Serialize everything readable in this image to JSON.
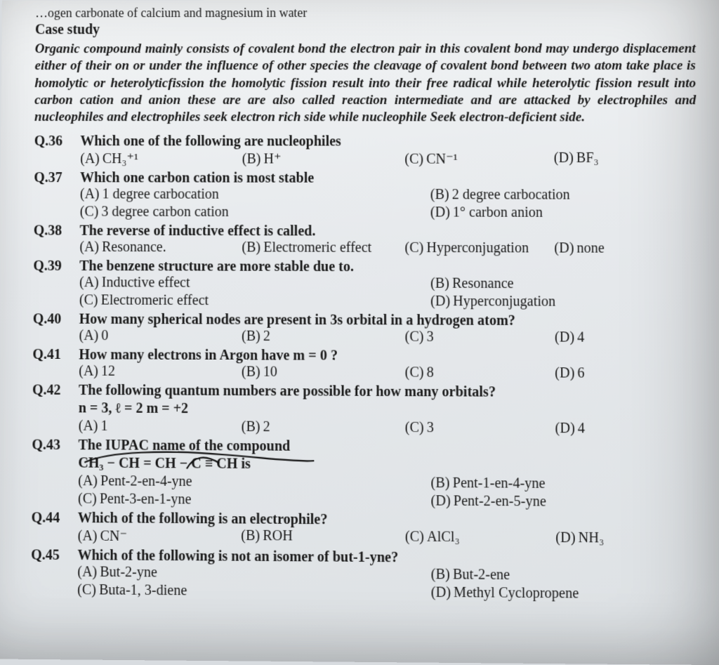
{
  "header": {
    "line1_frag": "…ogen carbonate of calcium and magnesium in water",
    "case_study": "Case study"
  },
  "paragraph": "Organic compound mainly consists of covalent bond the electron pair in this covalent bond may undergo displacement either of their on or under the influence of other species the cleavage of covalent bond between two atom take place is homolytic or heterolyticfission the homolytic fission result into their free radical while heterolytic fission result into carbon cation and anion these are are also called reaction intermediate and are attacked by electrophiles and nucleophiles and electrophiles seek electron rich side while nucleophile Seek electron-deficient side.",
  "questions": [
    {
      "num": "Q.36",
      "text": "Which one of the following are nucleophiles",
      "layout": "cols4",
      "opts": [
        {
          "l": "(A)",
          "t": "CH₃⁺¹"
        },
        {
          "l": "(B)",
          "t": "H⁺"
        },
        {
          "l": "(C)",
          "t": "CN⁻¹"
        },
        {
          "l": "(D)",
          "t": "BF₃"
        }
      ]
    },
    {
      "num": "Q.37",
      "text": "Which one carbon cation is most stable",
      "layout": "cols2",
      "opts": [
        {
          "l": "(A)",
          "t": "1 degree carbocation"
        },
        {
          "l": "(B)",
          "t": "2 degree carbocation"
        },
        {
          "l": "(C)",
          "t": "3 degree carbon cation"
        },
        {
          "l": "(D)",
          "t": "1° carbon anion"
        }
      ]
    },
    {
      "num": "Q.38",
      "text": "The reverse of inductive effect is called.",
      "layout": "cols4",
      "opts": [
        {
          "l": "(A)",
          "t": "Resonance."
        },
        {
          "l": "(B)",
          "t": "Electromeric effect"
        },
        {
          "l": "(C)",
          "t": "Hyperconjugation"
        },
        {
          "l": "(D)",
          "t": "none"
        }
      ]
    },
    {
      "num": "Q.39",
      "text": "The benzene structure are more stable due to.",
      "layout": "cols2",
      "opts": [
        {
          "l": "(A)",
          "t": "Inductive effect"
        },
        {
          "l": "(B)",
          "t": "Resonance"
        },
        {
          "l": "(C)",
          "t": "Electromeric effect"
        },
        {
          "l": "(D)",
          "t": "Hyperconjugation"
        }
      ]
    },
    {
      "num": "Q.40",
      "text": "How many spherical nodes are present in 3s orbital in a hydrogen atom?",
      "layout": "cols4",
      "opts": [
        {
          "l": "(A)",
          "t": "0"
        },
        {
          "l": "(B)",
          "t": "2"
        },
        {
          "l": "(C)",
          "t": "3"
        },
        {
          "l": "(D)",
          "t": "4"
        }
      ]
    },
    {
      "num": "Q.41",
      "text": "How many electrons in Argon have m = 0 ?",
      "layout": "cols4",
      "opts": [
        {
          "l": "(A)",
          "t": "12"
        },
        {
          "l": "(B)",
          "t": "10"
        },
        {
          "l": "(C)",
          "t": "8"
        },
        {
          "l": "(D)",
          "t": "6"
        }
      ]
    },
    {
      "num": "Q.42",
      "text": "The following quantum numbers are possible for how many orbitals?",
      "sub": "n = 3, ℓ = 2  m = +2",
      "layout": "cols4",
      "opts": [
        {
          "l": "(A)",
          "t": "1"
        },
        {
          "l": "(B)",
          "t": "2"
        },
        {
          "l": "(C)",
          "t": "3"
        },
        {
          "l": "(D)",
          "t": "4"
        }
      ]
    },
    {
      "num": "Q.43",
      "text": "The IUPAC name of the compound",
      "sub": "CH₃ − CH = CH − C ≡ CH is",
      "layout": "cols2",
      "opts": [
        {
          "l": "(A)",
          "t": "Pent-2-en-4-yne"
        },
        {
          "l": "(B)",
          "t": "Pent-1-en-4-yne"
        },
        {
          "l": "(C)",
          "t": "Pent-3-en-1-yne"
        },
        {
          "l": "(D)",
          "t": "Pent-2-en-5-yne"
        }
      ]
    },
    {
      "num": "Q.44",
      "text": "Which of the following is an electrophile?",
      "layout": "cols4",
      "opts": [
        {
          "l": "(A)",
          "t": "CN⁻"
        },
        {
          "l": "(B)",
          "t": "ROH"
        },
        {
          "l": "(C)",
          "t": "AlCl₃"
        },
        {
          "l": "(D)",
          "t": "NH₃"
        }
      ]
    },
    {
      "num": "Q.45",
      "text": "Which of the following is not an isomer of but-1-yne?",
      "layout": "cols2",
      "opts": [
        {
          "l": "(A)",
          "t": "But-2-yne"
        },
        {
          "l": "(B)",
          "t": "But-2-ene"
        },
        {
          "l": "(C)",
          "t": "Buta-1, 3-diene"
        },
        {
          "l": "(D)",
          "t": "Methyl Cyclopropene"
        }
      ]
    }
  ]
}
